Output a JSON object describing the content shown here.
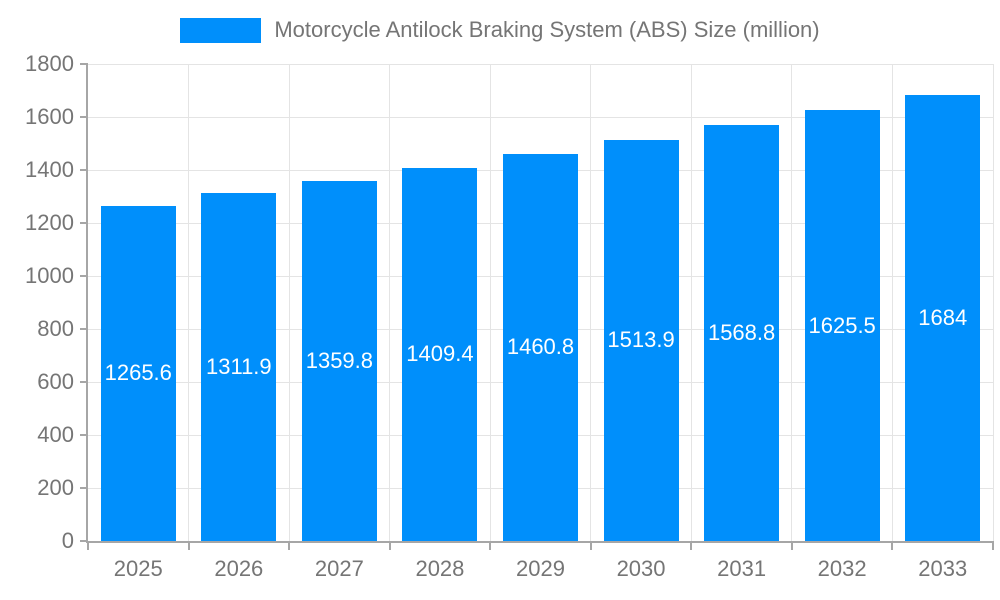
{
  "legend": {
    "label": "Motorcycle Antilock Braking System (ABS) Size (million)"
  },
  "chart_data": {
    "type": "bar",
    "title": "Motorcycle Antilock Braking System (ABS) Size (million)",
    "categories": [
      "2025",
      "2026",
      "2027",
      "2028",
      "2029",
      "2030",
      "2031",
      "2032",
      "2033"
    ],
    "values": [
      1265.6,
      1311.9,
      1359.8,
      1409.4,
      1460.8,
      1513.9,
      1568.8,
      1625.5,
      1684
    ],
    "value_labels": [
      "1265.6",
      "1311.9",
      "1359.8",
      "1409.4",
      "1460.8",
      "1513.9",
      "1568.8",
      "1625.5",
      "1684"
    ],
    "xlabel": "",
    "ylabel": "",
    "ylim": [
      0,
      1800
    ],
    "ytick_step": 200,
    "grid": true,
    "legend_position": "top",
    "colors": {
      "bar": "#008FFB",
      "grid": "#e4e4e4",
      "axis": "#a6a6a6",
      "tick_label": "#757575",
      "value_label": "#ffffff"
    }
  }
}
